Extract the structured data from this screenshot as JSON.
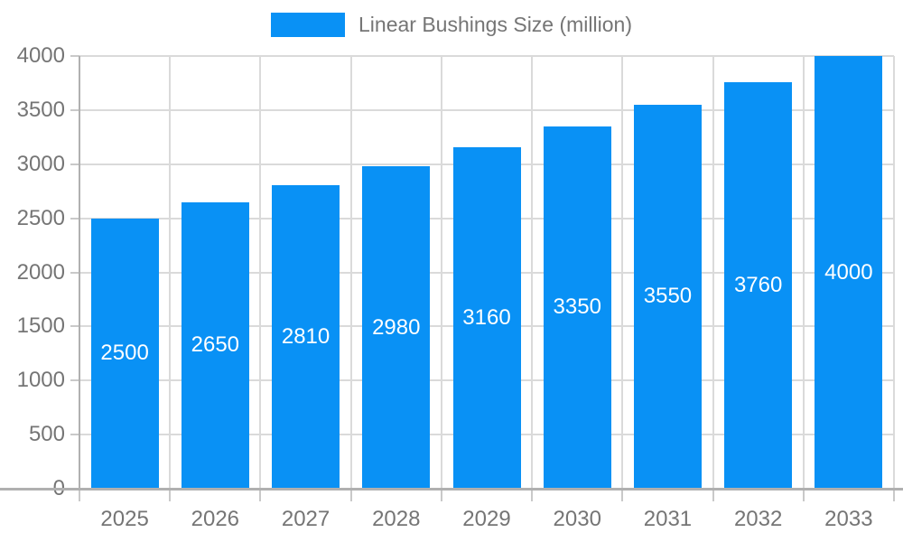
{
  "legend": {
    "label": "Linear Bushings Size (million)",
    "swatch_color": "#0991f5"
  },
  "chart_data": {
    "type": "bar",
    "title": "Linear Bushings Size (million)",
    "series_name": "Linear Bushings Size (million)",
    "categories": [
      "2025",
      "2026",
      "2027",
      "2028",
      "2029",
      "2030",
      "2031",
      "2032",
      "2033"
    ],
    "values": [
      2500,
      2650,
      2810,
      2980,
      3160,
      3350,
      3550,
      3760,
      4000
    ],
    "value_labels": [
      "2500",
      "2650",
      "2810",
      "2980",
      "3160",
      "3350",
      "3550",
      "3760",
      "4000"
    ],
    "xlabel": "",
    "ylabel": "",
    "ylim": [
      0,
      4000
    ],
    "yticks": [
      0,
      500,
      1000,
      1500,
      2000,
      2500,
      3000,
      3500,
      4000
    ],
    "grid": true,
    "legend_position": "top",
    "colors": {
      "bar": "#0991f5",
      "value_label": "#ffffff",
      "axis_label": "#757575",
      "gridline": "#dadada",
      "tick": "#c9c9c9",
      "axis_line": "#b0b0b0"
    }
  }
}
